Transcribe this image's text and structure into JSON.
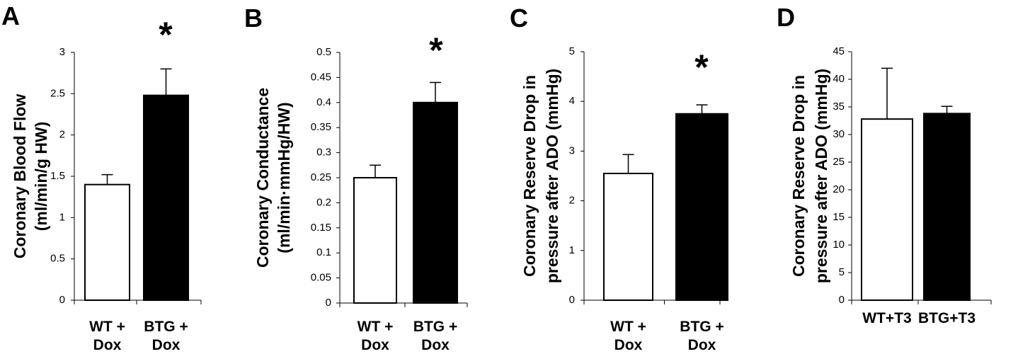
{
  "chart_data": [
    {
      "type": "bar",
      "panel": "A",
      "categories": [
        [
          "WT +",
          "Dox"
        ],
        [
          "BTG +",
          "Dox"
        ]
      ],
      "values": [
        1.4,
        2.48
      ],
      "errors": [
        0.12,
        0.32
      ],
      "fills": [
        "#ffffff",
        "#000000"
      ],
      "significance": [
        "",
        "*"
      ],
      "ylabel": [
        "Coronary Blood Flow",
        "(ml/min/g HW)"
      ],
      "ylim": [
        0,
        3
      ],
      "yticks": [
        0,
        0.5,
        1,
        1.5,
        2,
        2.5,
        3
      ],
      "ytick_labels": [
        "0",
        "0.5",
        "1",
        "1.5",
        "2",
        "2.5",
        "3"
      ],
      "grid": false
    },
    {
      "type": "bar",
      "panel": "B",
      "categories": [
        [
          "WT +",
          "Dox"
        ],
        [
          "BTG +",
          "Dox"
        ]
      ],
      "values": [
        0.25,
        0.4
      ],
      "errors": [
        0.025,
        0.04
      ],
      "fills": [
        "#ffffff",
        "#000000"
      ],
      "significance": [
        "",
        "*"
      ],
      "ylabel": [
        "Coronary Conductance",
        "(ml/min·mmHg/HW)"
      ],
      "ylim": [
        0,
        0.5
      ],
      "yticks": [
        0,
        0.05,
        0.1,
        0.15,
        0.2,
        0.25,
        0.3,
        0.35,
        0.4,
        0.45,
        0.5
      ],
      "ytick_labels": [
        "0",
        "0.05",
        "0.1",
        "0.15",
        "0.2",
        "0.25",
        "0.3",
        "0.35",
        "0.4",
        "0.45",
        "0.5"
      ],
      "grid": false
    },
    {
      "type": "bar",
      "panel": "C",
      "categories": [
        [
          "WT +",
          "Dox"
        ],
        [
          "BTG +",
          "Dox"
        ]
      ],
      "values": [
        2.55,
        3.75
      ],
      "errors": [
        0.38,
        0.18
      ],
      "fills": [
        "#ffffff",
        "#000000"
      ],
      "significance": [
        "",
        "*"
      ],
      "ylabel": [
        "Coronary Reserve Drop in",
        "pressure after ADO (mmHg)"
      ],
      "ylim": [
        0,
        5
      ],
      "yticks": [
        0,
        1,
        2,
        3,
        4,
        5
      ],
      "ytick_labels": [
        "0",
        "1",
        "2",
        "3",
        "4",
        "5"
      ],
      "grid": false
    },
    {
      "type": "bar",
      "panel": "D",
      "categories": [
        [
          "WT+T3"
        ],
        [
          "BTG+T3"
        ]
      ],
      "values": [
        32.8,
        33.8
      ],
      "errors": [
        9.2,
        1.3
      ],
      "fills": [
        "#ffffff",
        "#000000"
      ],
      "significance": [
        "",
        ""
      ],
      "ylabel": [
        "Coronary Reserve Drop in",
        "pressure after ADO (mmHg)"
      ],
      "ylim": [
        0,
        45
      ],
      "yticks": [
        0,
        5,
        10,
        15,
        20,
        25,
        30,
        35,
        40,
        45
      ],
      "ytick_labels": [
        "0",
        "5",
        "10",
        "15",
        "20",
        "25",
        "30",
        "35",
        "40",
        "45"
      ],
      "grid": false
    }
  ]
}
